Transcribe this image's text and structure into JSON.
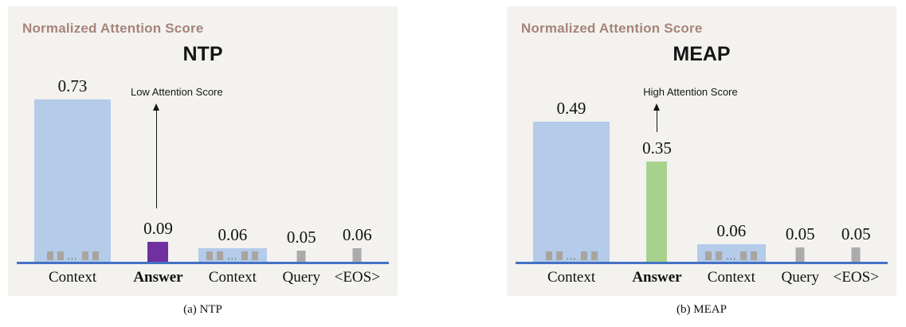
{
  "figure": {
    "background": "#ffffff",
    "panel_background": "#f3f2ef"
  },
  "colors": {
    "axis_title_text": "#a7837a",
    "baseline": "#4472c4",
    "context_bar": "#b4cbe9",
    "ntp_answer_bar": "#7030a0",
    "meap_answer_bar": "#a9d18e",
    "minor_bar": "#ababab",
    "token_tick": "#a9a49f",
    "annotation": "#161616"
  },
  "ellipsis": "...",
  "chart_data": [
    {
      "type": "bar",
      "title": "NTP",
      "axis_title": "Normalized Attention Score",
      "caption": "(a) NTP",
      "annotation": "Low Attention Score",
      "categories": [
        "Context",
        "Answer",
        "Context",
        "Query",
        "<EOS>"
      ],
      "values": [
        0.73,
        0.09,
        0.06,
        0.05,
        0.06
      ],
      "value_labels": [
        "0.73",
        "0.09",
        "0.06",
        "0.05",
        "0.06"
      ],
      "bar_colors": [
        "#b4cbe9",
        "#7030a0",
        "#b4cbe9",
        "#ababab",
        "#ababab"
      ],
      "bold_categories": [
        false,
        true,
        false,
        false,
        false
      ],
      "has_token_ticks": [
        true,
        false,
        true,
        false,
        false
      ],
      "ylim": [
        0,
        0.8
      ],
      "grid": false,
      "legend": null
    },
    {
      "type": "bar",
      "title": "MEAP",
      "axis_title": "Normalized Attention Score",
      "caption": "(b) MEAP",
      "annotation": "High Attention Score",
      "categories": [
        "Context",
        "Answer",
        "Context",
        "Query",
        "<EOS>"
      ],
      "values": [
        0.49,
        0.35,
        0.06,
        0.05,
        0.05
      ],
      "value_labels": [
        "0.49",
        "0.35",
        "0.06",
        "0.05",
        "0.05"
      ],
      "bar_colors": [
        "#b4cbe9",
        "#a9d18e",
        "#b4cbe9",
        "#ababab",
        "#ababab"
      ],
      "bold_categories": [
        false,
        true,
        false,
        false,
        false
      ],
      "has_token_ticks": [
        true,
        false,
        true,
        false,
        false
      ],
      "ylim": [
        0,
        0.8
      ],
      "grid": false,
      "legend": null
    }
  ]
}
